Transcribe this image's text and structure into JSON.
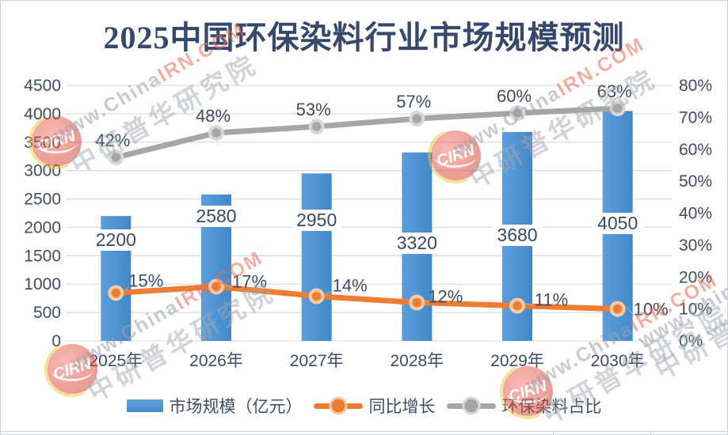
{
  "title": "2025中国环保染料行业市场规模预测",
  "chart_data": {
    "type": "combo-bar-line",
    "title": "2025中国环保染料行业市场规模预测",
    "categories": [
      "2025年",
      "2026年",
      "2027年",
      "2028年",
      "2029年",
      "2030年"
    ],
    "series": [
      {
        "name": "市场规模（亿元）",
        "type": "bar",
        "axis": "left",
        "values": [
          2200,
          2580,
          2950,
          3320,
          3680,
          4050
        ],
        "labels": [
          "2200",
          "2580",
          "2950",
          "3320",
          "3680",
          "4050"
        ],
        "color": "#4b92d4"
      },
      {
        "name": "同比增长",
        "type": "line",
        "axis": "right",
        "values": [
          15,
          17,
          14,
          12,
          11,
          10
        ],
        "labels": [
          "15%",
          "17%",
          "14%",
          "12%",
          "11%",
          "10%"
        ],
        "color": "#ed7d31"
      },
      {
        "name": "环保染料占比",
        "type": "line",
        "axis": "right",
        "values": [
          42,
          48,
          53,
          57,
          60,
          63
        ],
        "labels": [
          "42%",
          "48%",
          "53%",
          "57%",
          "60%",
          "63%"
        ],
        "color": "#a6a6a6"
      }
    ],
    "left_axis": {
      "min": 0,
      "max": 4500,
      "step": 500,
      "tick_labels": [
        "0",
        "500",
        "1000",
        "1500",
        "2000",
        "2500",
        "3000",
        "3500",
        "4000",
        "4500"
      ]
    },
    "right_axis": {
      "min": 0,
      "max": 80,
      "step": 10,
      "tick_labels": [
        "0%",
        "10%",
        "20%",
        "30%",
        "40%",
        "50%",
        "60%",
        "70%",
        "80%"
      ]
    },
    "grid": true,
    "legend_position": "bottom",
    "legend": [
      "市场规模（亿元）",
      "同比增长",
      "环保染料占比"
    ]
  },
  "watermark": {
    "logo_text": "CIRN",
    "site_text_gray": "www.China",
    "site_text_orange": "IRN.COM",
    "org_text": "中研普华研究院"
  },
  "colors": {
    "bar": "#4b92d4",
    "yoy_line": "#ed7d31",
    "share_line": "#a6a6a6",
    "text": "#3d4c63",
    "grid": "#d9dde2",
    "title": "#36486b"
  }
}
